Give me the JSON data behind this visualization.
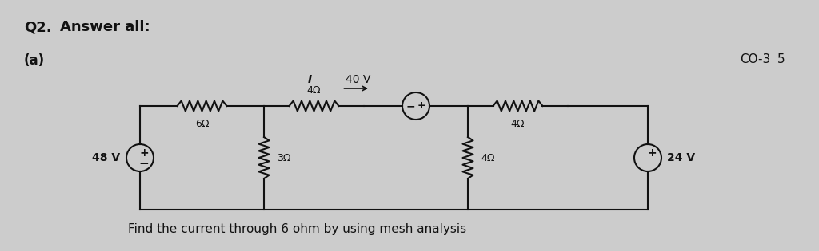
{
  "bg_color": "#cccccc",
  "title_text": "Q2.",
  "title_sub": "Answer all:",
  "part_label": "(a)",
  "co_label": "CO-3",
  "co_number": "5",
  "footer_text": "Find the current through 6 ohm by using mesh analysis",
  "left_source_label": "48 V",
  "left_source_plus": "+",
  "left_source_minus": "−",
  "r1_label": "6Ω",
  "r2_label": "4Ω",
  "r3_label": "3Ω",
  "r4_label": "4Ω",
  "r5_label": "4Ω",
  "mid_source_label": "40 V",
  "mid_source_plus": "+",
  "mid_source_minus": "−",
  "current_label": "I",
  "right_source_label": "24 V",
  "right_source_plus": "+",
  "text_color": "#111111",
  "wire_color": "#111111",
  "font_size_title": 13,
  "font_size_label": 11,
  "font_size_small": 9
}
